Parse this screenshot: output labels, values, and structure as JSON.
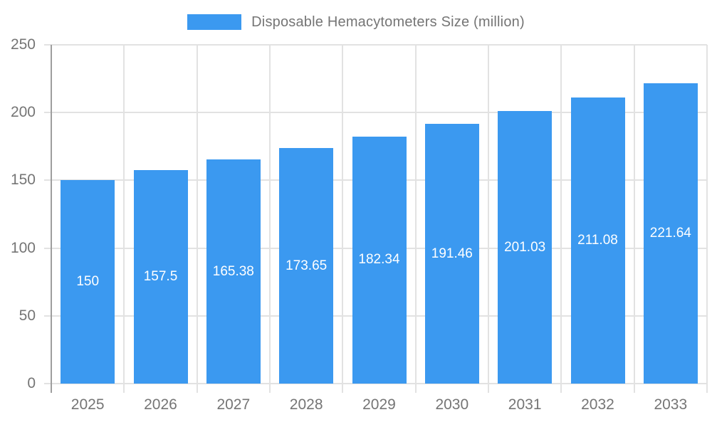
{
  "legend": {
    "label": "Disposable Hemacytometers Size (million)"
  },
  "chart_data": {
    "type": "bar",
    "title": "Disposable Hemacytometers Size (million)",
    "categories": [
      "2025",
      "2026",
      "2027",
      "2028",
      "2029",
      "2030",
      "2031",
      "2032",
      "2033"
    ],
    "values": [
      150,
      157.5,
      165.38,
      173.65,
      182.34,
      191.46,
      201.03,
      211.08,
      221.64
    ],
    "value_labels": [
      "150",
      "157.5",
      "165.38",
      "173.65",
      "182.34",
      "191.46",
      "201.03",
      "211.08",
      "221.64"
    ],
    "xlabel": "",
    "ylabel": "",
    "ylim": [
      0,
      250
    ],
    "yticks": [
      0,
      50,
      100,
      150,
      200,
      250
    ],
    "legend_position": "top",
    "grid": "on",
    "colors": {
      "bar": "#3b99f0",
      "grid": "#e2e2e2",
      "axis": "#9e9e9e",
      "text": "#757575",
      "value_label": "#ffffff"
    }
  }
}
